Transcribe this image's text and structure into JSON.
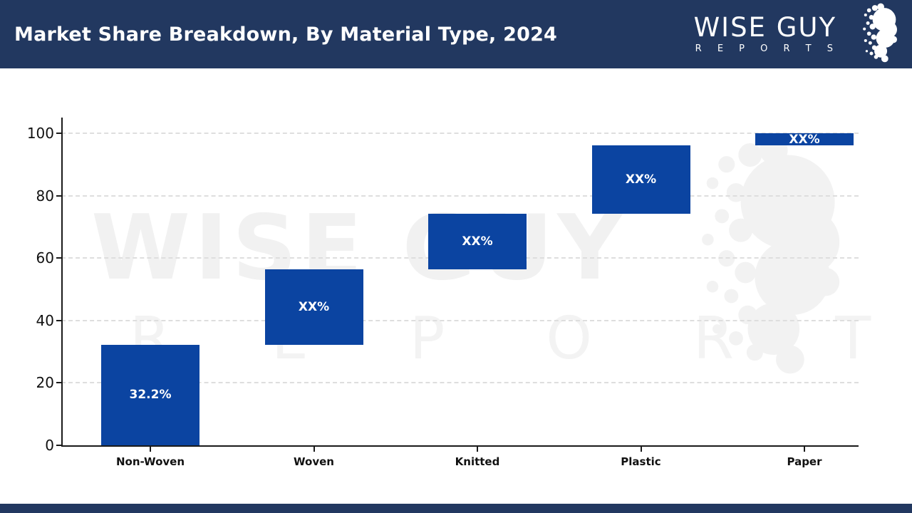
{
  "header": {
    "title": "Market Share Breakdown, By Material Type, 2024",
    "logo": {
      "main": "WISE GUY",
      "sub": "R E P O R T S"
    },
    "bg_color": "#223860"
  },
  "watermark": {
    "line1": "WISE GUY",
    "line2": "R E P O R T S"
  },
  "chart_data": {
    "type": "bar",
    "subtype": "waterfall",
    "title": "Market Share Breakdown, By Material Type, 2024",
    "categories": [
      "Non-Woven",
      "Woven",
      "Knitted",
      "Plastic",
      "Paper"
    ],
    "segments": [
      {
        "category": "Non-Woven",
        "start": 0,
        "end": 32.2,
        "label": "32.2%"
      },
      {
        "category": "Woven",
        "start": 32.2,
        "end": 56.4,
        "label": "XX%"
      },
      {
        "category": "Knitted",
        "start": 56.4,
        "end": 74.2,
        "label": "XX%"
      },
      {
        "category": "Plastic",
        "start": 74.2,
        "end": 96.1,
        "label": "XX%"
      },
      {
        "category": "Paper",
        "start": 96.1,
        "end": 100,
        "label": "XX%"
      }
    ],
    "xlabel": "",
    "ylabel": "",
    "ylim": [
      0,
      100
    ],
    "yticks": [
      0,
      20,
      40,
      60,
      80,
      100
    ],
    "grid": true,
    "grid_style": "dashed",
    "legend": "none",
    "bar_color": "#0b44a1",
    "bar_label_color": "#ffffff",
    "axis_color": "#1a1a1a"
  },
  "footer": {
    "bg_color": "#223860"
  }
}
